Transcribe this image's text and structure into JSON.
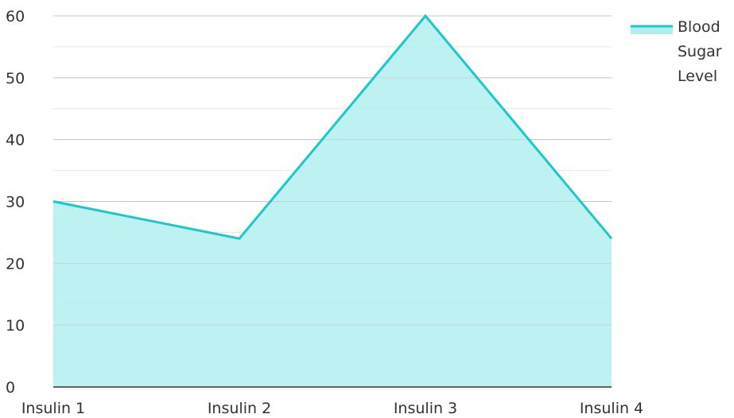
{
  "chart_data": {
    "type": "area",
    "title": "",
    "xlabel": "",
    "ylabel": "",
    "categories": [
      "Insulin 1",
      "Insulin 2",
      "Insulin 3",
      "Insulin 4"
    ],
    "series": [
      {
        "name": "Blood Sugar Level",
        "values": [
          30,
          24,
          60,
          24
        ]
      }
    ],
    "ylim": [
      0,
      60
    ],
    "yticks": [
      0,
      10,
      20,
      30,
      40,
      50,
      60
    ],
    "grid": true,
    "legend": "top-right",
    "colors": {
      "line": "#1cc8c8",
      "fill": "#b3eeee",
      "grid": "#c8c8c8",
      "axis": "#333333"
    }
  },
  "legend": {
    "lines": [
      "Blood",
      "Sugar",
      "Level"
    ]
  }
}
